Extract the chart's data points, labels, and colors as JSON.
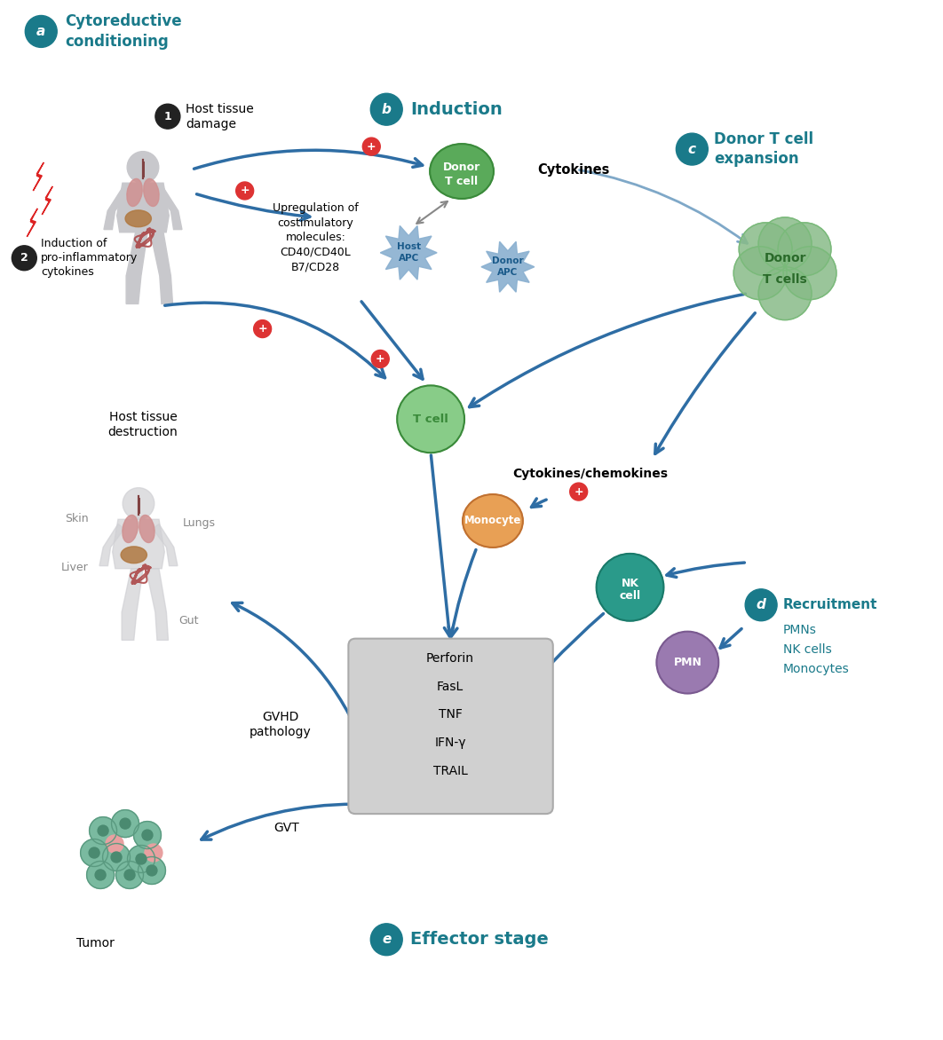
{
  "bg_color": "#ffffff",
  "arrow_color": "#2e6da4",
  "arrow_color_light": "#7fa8c8",
  "teal_color": "#1a7a8a",
  "label_a_text": "Cytoreductive\nconditioning",
  "label_b_text": "Induction",
  "label_c_text": "Donor T cell\nexpansion",
  "label_d_text": "Recruitment",
  "label_e_text": "Effector stage",
  "circle_label_color": "#1a7a8a",
  "circle_bg_color": "#1a7a8a",
  "donor_tcell_color": "#5aaa5a",
  "donor_tcell_dark": "#3a8a3a",
  "tcell_color": "#88cc88",
  "tcell_dark": "#5aaa5a",
  "monocyte_color": "#e8a055",
  "monocyte_dark": "#c07030",
  "nk_color": "#2a9a8a",
  "nk_dark": "#1a7a6a",
  "pmn_color": "#9a7ab0",
  "pmn_dark": "#7a5a90",
  "host_apc_color": "#8ab0d0",
  "donor_apc_color": "#8ab0d0",
  "red_circle_color": "#dd3333",
  "effector_box_color": "#d0d0d0",
  "black_circle_color": "#222222",
  "tumor_cell_color": "#7abaa0",
  "tumor_pink_color": "#e8a0a0",
  "gray_person_color": "#c8c8cc",
  "organ_pink_color": "#d09090",
  "organ_red_color": "#a04040",
  "organ_brown_color": "#b07840",
  "lightning_color": "#dd2222"
}
